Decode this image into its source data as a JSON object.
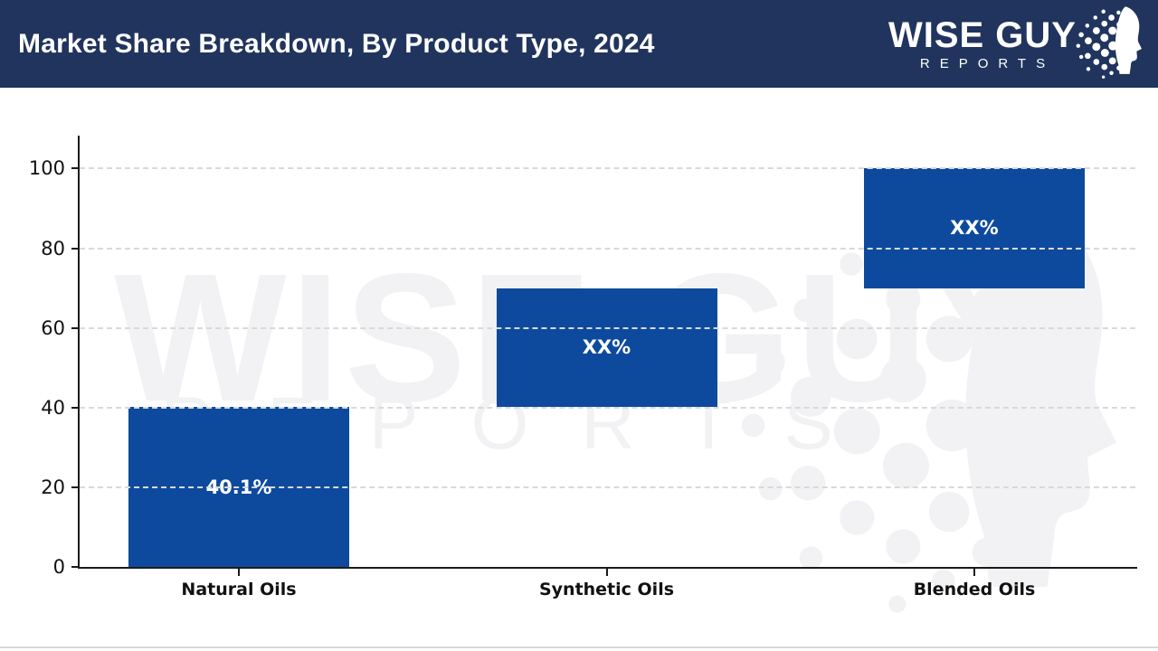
{
  "header": {
    "title": "Market Share Breakdown, By Product Type, 2024",
    "background_color": "#20345e",
    "logo": {
      "name": "WISE GUY",
      "tagline": "REPORTS"
    }
  },
  "watermark": {
    "line1": "WISE GUY",
    "line2": "REPORTS",
    "color": "#f2f2f4"
  },
  "chart_data": {
    "type": "bar",
    "variant": "floating-waterfall",
    "title": "Market Share Breakdown, By Product Type, 2024",
    "categories": [
      "Natural Oils",
      "Synthetic Oils",
      "Blended Oils"
    ],
    "segments": [
      {
        "category": "Natural Oils",
        "start": 0,
        "end": 40.1,
        "label": "40.1%"
      },
      {
        "category": "Synthetic Oils",
        "start": 40.1,
        "end": 70,
        "label": "XX%"
      },
      {
        "category": "Blended Oils",
        "start": 70,
        "end": 100,
        "label": "XX%"
      }
    ],
    "xlabel": "",
    "ylabel": "",
    "ylim": [
      0,
      100
    ],
    "yticks": [
      0,
      20,
      40,
      60,
      80,
      100
    ],
    "grid": "horizontal-dashed",
    "legend_position": "none",
    "bar_color": "#0d4a9e",
    "bar_label_color": "#ffffff",
    "axis_color": "#1a1a1a",
    "gridline_color": "#d9d9d9",
    "tick_label_color": "#111111"
  }
}
